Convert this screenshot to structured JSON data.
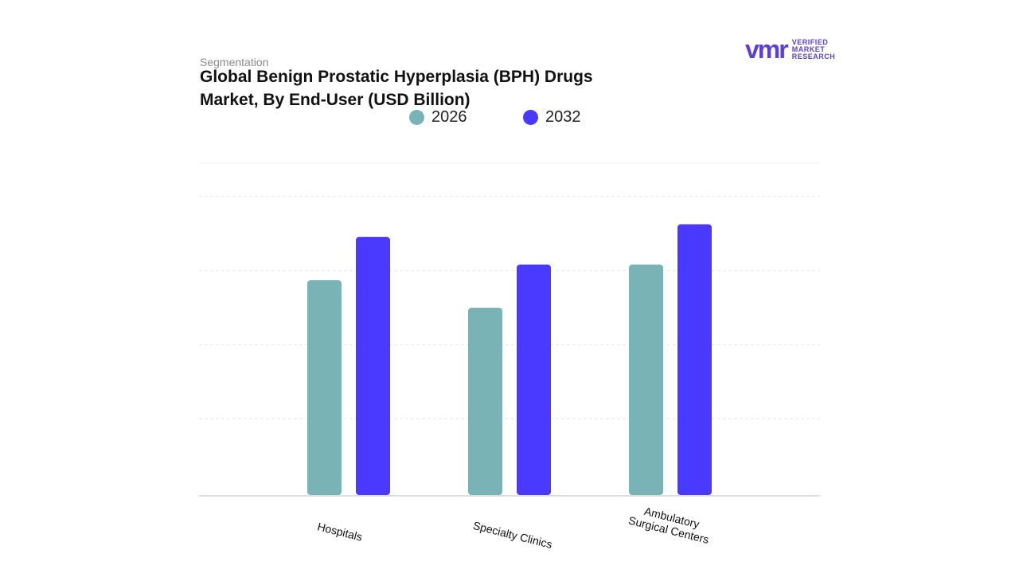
{
  "chart_data": {
    "type": "bar",
    "eyebrow": "Segmentation",
    "title": "Global Benign Prostatic Hyperplasia (BPH) Drugs Market, By End-User (USD Billion)",
    "logo": {
      "mark": "vmr",
      "text": "VERIFIED MARKET RESEARCH"
    },
    "categories": [
      "Hospitals",
      "Specialty Clinics",
      "Ambulatory Surgical Centers"
    ],
    "series": [
      {
        "name": "2026",
        "color": "#7ab3b6",
        "values": [
          2.88,
          2.51,
          3.09
        ]
      },
      {
        "name": "2032",
        "color": "#4a3aff",
        "values": [
          3.46,
          3.09,
          3.63
        ]
      }
    ],
    "ylim": [
      0,
      4.45
    ]
  }
}
